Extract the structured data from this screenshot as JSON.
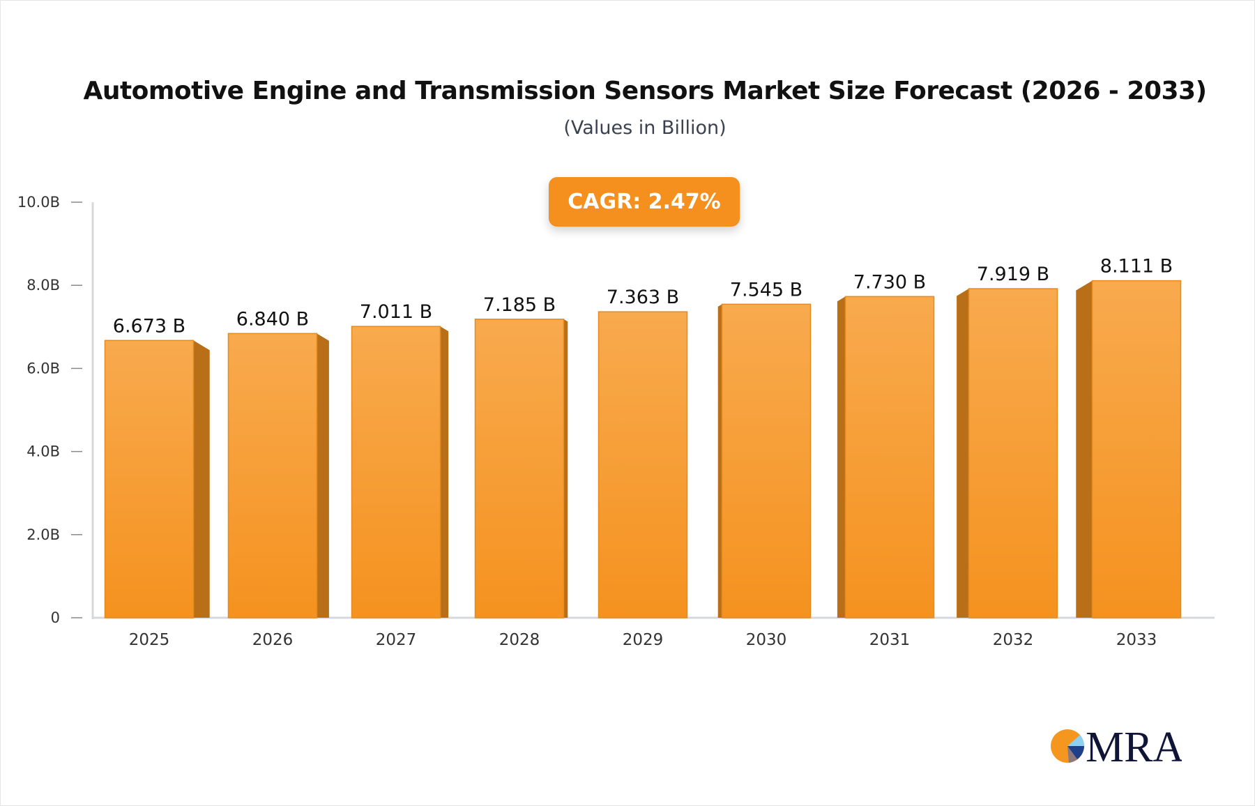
{
  "chart_data": {
    "type": "bar",
    "title": "Automotive Engine and Transmission Sensors Market Size Forecast (2026 - 2033)",
    "subtitle": "(Values in Billion)",
    "annotation": "CAGR: 2.47%",
    "categories": [
      "2025",
      "2026",
      "2027",
      "2028",
      "2029",
      "2030",
      "2031",
      "2032",
      "2033"
    ],
    "values": [
      6.673,
      6.84,
      7.011,
      7.185,
      7.363,
      7.545,
      7.73,
      7.919,
      8.111
    ],
    "data_labels": [
      "6.673 B",
      "6.840 B",
      "7.011 B",
      "7.185 B",
      "7.363 B",
      "7.545 B",
      "7.730 B",
      "7.919 B",
      "8.111 B"
    ],
    "ylim": [
      0,
      10
    ],
    "yticks": [
      0,
      2,
      4,
      6,
      8,
      10
    ],
    "ytick_labels": [
      "0",
      "2.0B",
      "4.0B",
      "6.0B",
      "8.0B",
      "10.0B"
    ],
    "xlabel": "",
    "ylabel": "",
    "grid": false,
    "colors": {
      "bar_top": "#f8aa4e",
      "bar_bottom": "#f5921f",
      "bar_side": "#b86f17",
      "accent": "#f5901e"
    }
  },
  "logo": {
    "text": "MRA"
  }
}
